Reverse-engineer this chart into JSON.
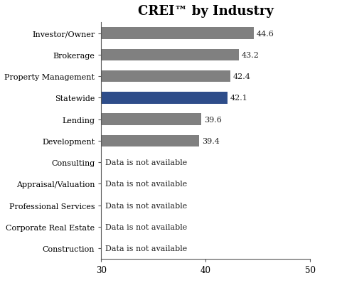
{
  "title": "CREI™ by Industry",
  "categories": [
    "Construction",
    "Corporate Real Estate",
    "Professional Services",
    "Appraisal/Valuation",
    "Consulting",
    "Development",
    "Lending",
    "Statewide",
    "Property Management",
    "Brokerage",
    "Investor/Owner"
  ],
  "values": [
    null,
    null,
    null,
    null,
    null,
    39.4,
    39.6,
    42.1,
    42.4,
    43.2,
    44.6
  ],
  "bar_colors": [
    "#808080",
    "#808080",
    "#808080",
    "#808080",
    "#808080",
    "#808080",
    "#808080",
    "#2e4d8a",
    "#808080",
    "#808080",
    "#808080"
  ],
  "na_label": "Data is not available",
  "xlim": [
    30,
    50
  ],
  "xticks": [
    30,
    40,
    50
  ],
  "bar_height": 0.55,
  "background_color": "#ffffff",
  "title_fontsize": 13,
  "label_fontsize": 8,
  "tick_fontsize": 8.5,
  "value_fontsize": 8,
  "na_fontsize": 8,
  "gray_color": "#808080",
  "blue_color": "#2e4d8a"
}
